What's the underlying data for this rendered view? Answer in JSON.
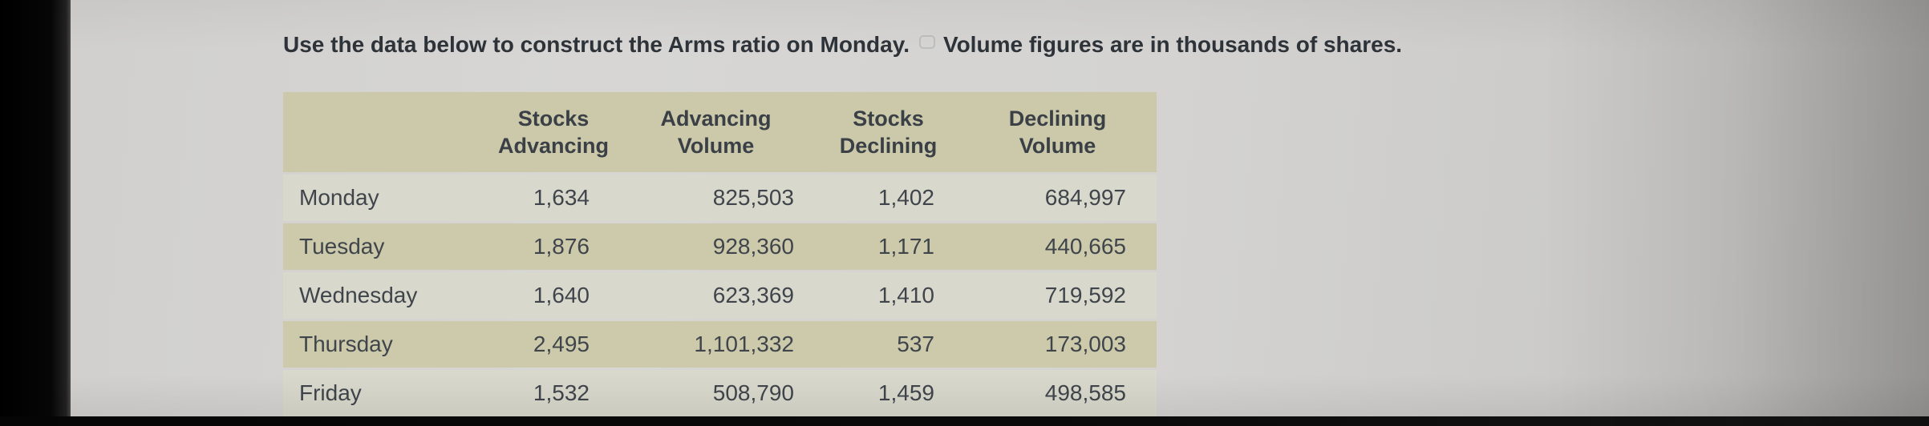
{
  "question": {
    "text_part1": "Use the data below to construct the Arms ratio on Monday.",
    "text_part2": "Volume figures are in thousands of shares."
  },
  "table": {
    "columns": [
      "",
      "Stocks\nAdvancing",
      "Advancing\nVolume",
      "Stocks\nDeclining",
      "Declining\nVolume"
    ],
    "rows": [
      {
        "label": "Monday",
        "values": [
          "1,634",
          "825,503",
          "1,402",
          "684,997"
        ]
      },
      {
        "label": "Tuesday",
        "values": [
          "1,876",
          "928,360",
          "1,171",
          "440,665"
        ]
      },
      {
        "label": "Wednesday",
        "values": [
          "1,640",
          "623,369",
          "1,410",
          "719,592"
        ]
      },
      {
        "label": "Thursday",
        "values": [
          "2,495",
          "1,101,332",
          "537",
          "173,003"
        ]
      },
      {
        "label": "Friday",
        "values": [
          "1,532",
          "508,790",
          "1,459",
          "498,585"
        ]
      }
    ]
  },
  "colors": {
    "header_row": "#cbc9aa",
    "beige_row": "#cccaab",
    "light_row": "#d9d8cc",
    "page_background": "#d4d3d1",
    "text": "#3f454b",
    "bezel": "#060606"
  }
}
